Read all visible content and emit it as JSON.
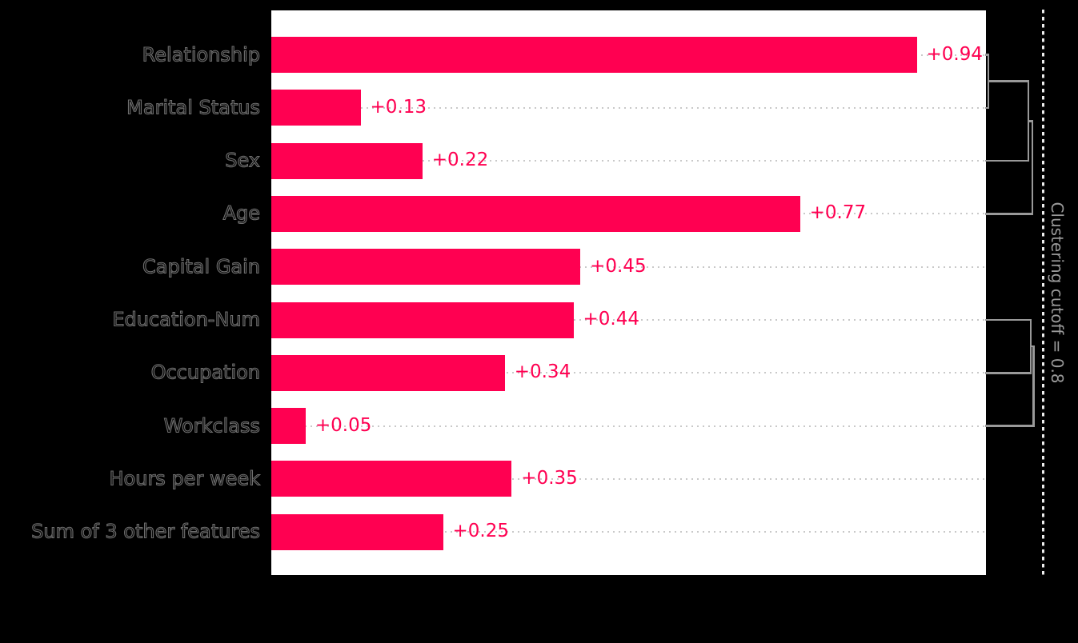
{
  "chart_data": {
    "type": "bar",
    "orientation": "horizontal",
    "title": "",
    "xlabel": "",
    "ylabel": "",
    "categories": [
      "Relationship",
      "Marital Status",
      "Sex",
      "Age",
      "Capital Gain",
      "Education-Num",
      "Occupation",
      "Workclass",
      "Hours per week",
      "Sum of 3 other features"
    ],
    "values": [
      0.94,
      0.13,
      0.22,
      0.77,
      0.45,
      0.44,
      0.34,
      0.05,
      0.35,
      0.25
    ],
    "value_labels": [
      "+0.94",
      "+0.13",
      "+0.22",
      "+0.77",
      "+0.45",
      "+0.44",
      "+0.34",
      "+0.05",
      "+0.35",
      "+0.25"
    ],
    "xlim": [
      0,
      1.04
    ],
    "grid": "one horizontal dotted line per category row",
    "legend": "none",
    "annotations": {
      "clustering_cutoff_label": "Clustering cutoff = 0.8",
      "clustering_cutoff_value": 0.8
    },
    "clustering": {
      "shown_clusters": [
        {
          "members": [
            "Relationship",
            "Marital Status",
            "Sex",
            "Age"
          ]
        },
        {
          "members": [
            "Education-Num",
            "Occupation",
            "Workclass"
          ]
        }
      ]
    }
  },
  "colors": {
    "page_background": "#000000",
    "plot_background": "#ffffff",
    "bar": "#ff0051",
    "value_label_text": "#ff0051",
    "gridline": "#c9c9c9",
    "dendrogram_line": "#999999",
    "cutoff_line": "#ededed",
    "cutoff_label_text": "#999999",
    "tick_label_edge": "#6e6e6e"
  }
}
